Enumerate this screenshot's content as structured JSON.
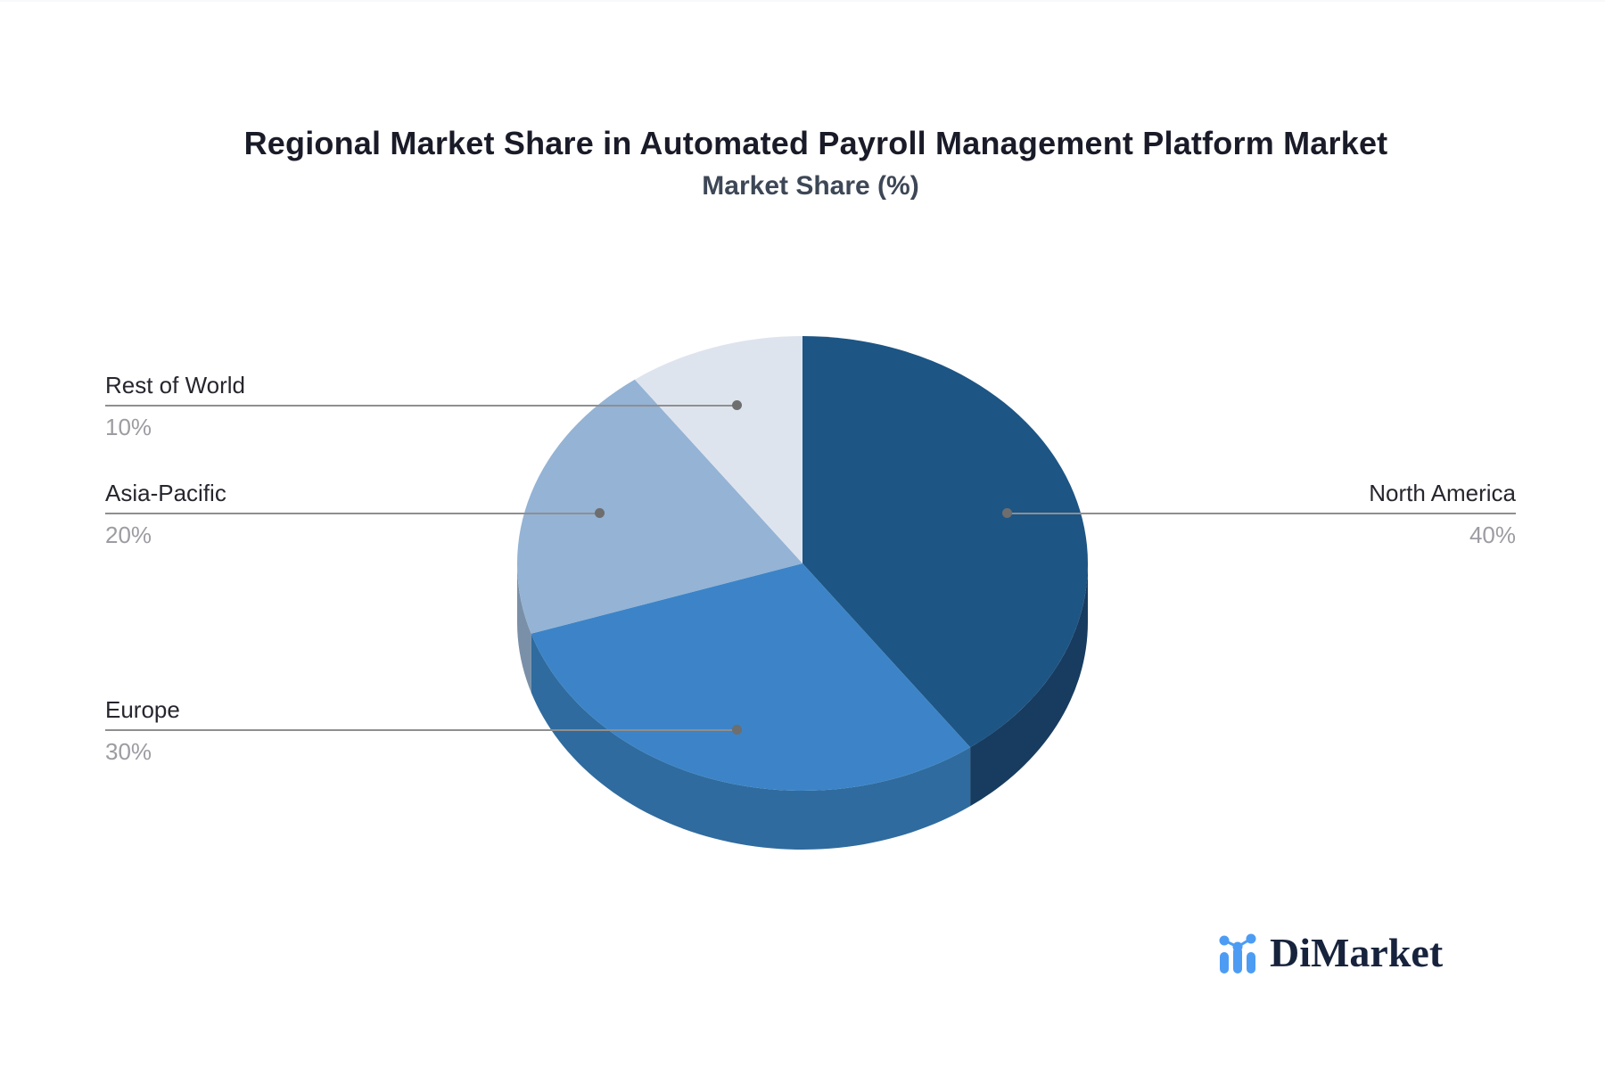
{
  "chart_data": {
    "type": "pie",
    "style": "3d",
    "title": "Regional Market Share in Automated Payroll Management Platform Market",
    "subtitle": "Market Share (%)",
    "unit": "%",
    "start_angle_deg": 90,
    "direction": "clockwise",
    "legend_position": "callout-labels",
    "slices": [
      {
        "label": "North America",
        "value": 40,
        "display_value": "40%",
        "color": "#1d5585",
        "side_color": "#173c5f",
        "label_side": "right"
      },
      {
        "label": "Europe",
        "value": 30,
        "display_value": "30%",
        "color": "#3c84c7",
        "side_color": "#2f6b9e",
        "label_side": "left"
      },
      {
        "label": "Asia-Pacific",
        "value": 20,
        "display_value": "20%",
        "color": "#94b3d5",
        "side_color": "#7a90a8",
        "label_side": "left"
      },
      {
        "label": "Rest of World",
        "value": 10,
        "display_value": "10%",
        "color": "#dee4ee",
        "side_color": "#c3cdda",
        "label_side": "left"
      }
    ]
  },
  "callout_colors": {
    "line": "#8f8f8f",
    "dot": "#6e6e6e",
    "label_text": "#26262e",
    "value_text": "#9c9ca2"
  },
  "branding": {
    "logo_text": "DiMarket",
    "logo_icon": "bar-chart-icon",
    "icon_color": "#4d9cf4",
    "text_color": "#17233c"
  }
}
